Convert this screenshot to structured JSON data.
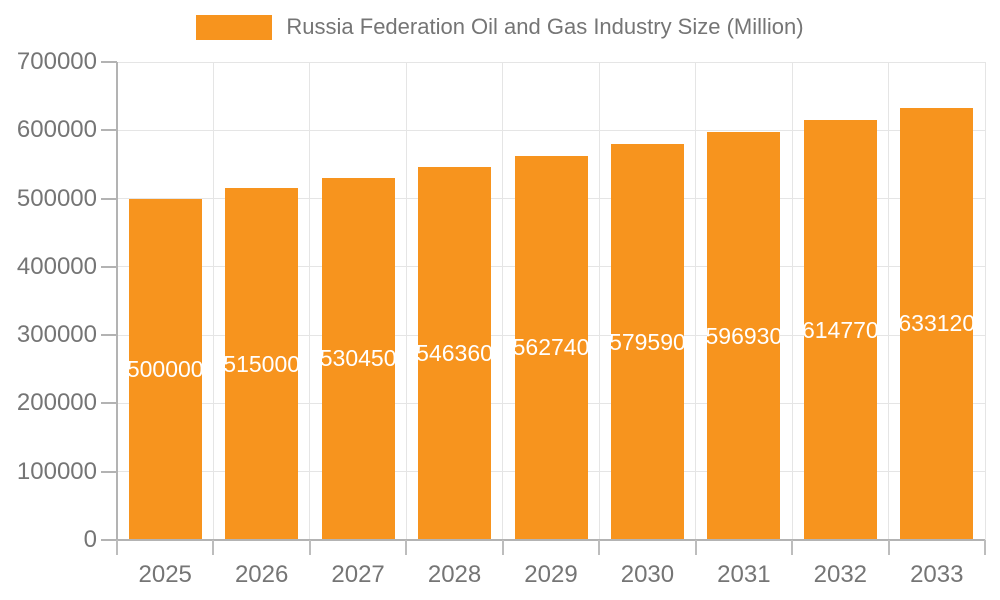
{
  "chart_data": {
    "type": "bar",
    "title": "Russia Federation Oil and Gas Industry Size (Million)",
    "categories": [
      "2025",
      "2026",
      "2027",
      "2028",
      "2029",
      "2030",
      "2031",
      "2032",
      "2033"
    ],
    "values": [
      500000,
      515000,
      530450,
      546360,
      562740,
      579590,
      596930,
      614770,
      633120
    ],
    "bar_labels": [
      "500000",
      "515000",
      "530450",
      "546360",
      "562740",
      "579590",
      "596930",
      "614770",
      "633120"
    ],
    "xlabel": "",
    "ylabel": "",
    "ylim": [
      0,
      700000
    ],
    "y_tick_interval": 100000,
    "y_tick_labels": [
      "0",
      "100000",
      "200000",
      "300000",
      "400000",
      "500000",
      "600000",
      "700000"
    ],
    "grid": true,
    "legend_position": "top-center",
    "colors": {
      "bar": "#f7941e",
      "bar_label": "#ffffff",
      "axis_text": "#757575",
      "title_text": "#757575",
      "grid_line": "#e5e5e5",
      "axis_line": "#b3b3b3",
      "tick_line": "#bdbdbd",
      "background": "#ffffff"
    }
  }
}
